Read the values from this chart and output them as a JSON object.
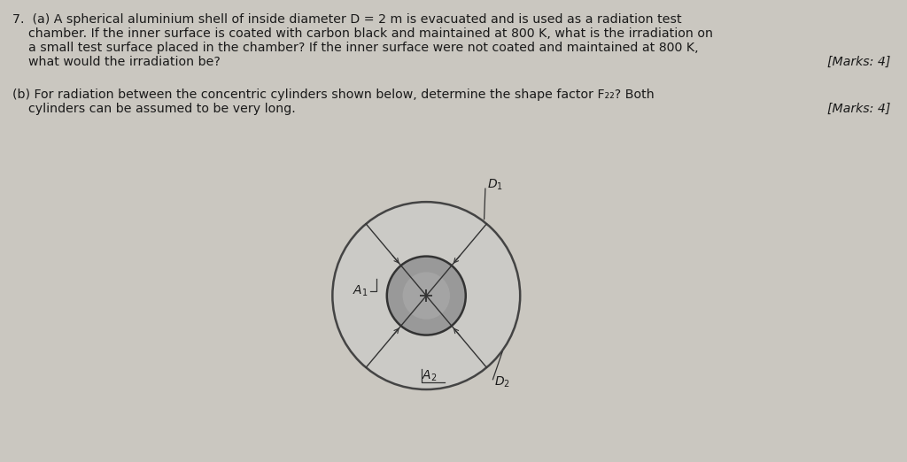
{
  "background_color": "#cac7c0",
  "text_color": "#1a1a1a",
  "part_a_line1": "7.  (a) A spherical aluminium shell of inside diameter D = 2 m is evacuated and is used as a radiation test",
  "part_a_line2": "    chamber. If the inner surface is coated with carbon black and maintained at 800 K, what is the irradiation on",
  "part_a_line3": "    a small test surface placed in the chamber? If the inner surface were not coated and maintained at 800 K,",
  "part_a_line4": "    what would the irradiation be?",
  "part_a_marks": "[Marks: 4]",
  "part_b_line1": "(b) For radiation between the concentric cylinders shown below, determine the shape factor F₂₂? Both",
  "part_b_line2": "    cylinders can be assumed to be very long.",
  "part_b_marks": "[Marks: 4]",
  "diagram": {
    "outer_color_fill": "#c8c5bf",
    "outer_color_edge": "#444444",
    "inner_color_fill": "#888888",
    "inner_color_edge": "#333333",
    "line_color": "#333333",
    "arrow_color": "#111111",
    "label_color": "#1a1a1a"
  }
}
